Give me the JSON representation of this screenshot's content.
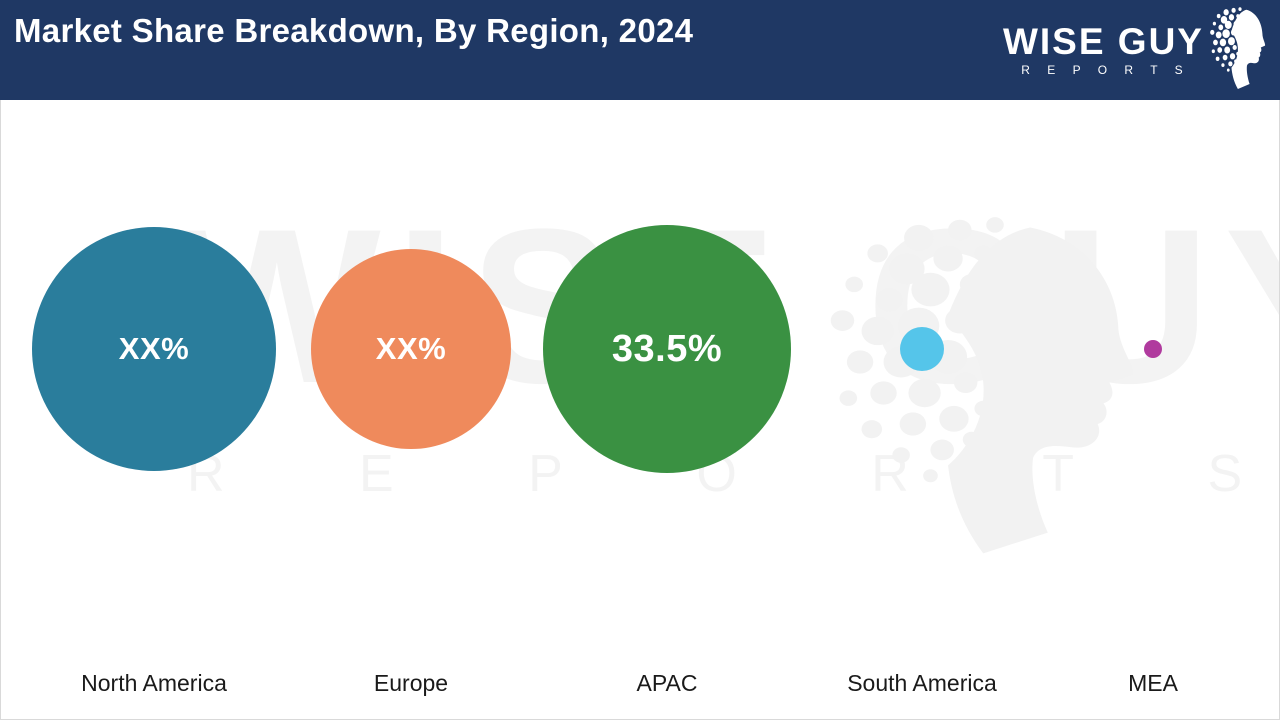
{
  "header": {
    "title": "Market Share Breakdown, By Region, 2024",
    "bg_color": "#1f3864",
    "logo": {
      "line1": "WISE GUY",
      "line2": "R E P O R T S"
    }
  },
  "watermark": {
    "line1": "WISE GUY",
    "line2": "R E P O R T S",
    "color": "#f2f2f2"
  },
  "chart_data": {
    "type": "bubble",
    "title": "Market Share Breakdown, By Region, 2024",
    "categories": [
      "North America",
      "Europe",
      "APAC",
      "South America",
      "MEA"
    ],
    "series": [
      {
        "name": "Market Share",
        "points": [
          {
            "category": "North America",
            "value_label": "XX%",
            "color": "#2a7d9c",
            "radius_px": 122
          },
          {
            "category": "Europe",
            "value_label": "XX%",
            "color": "#ef8a5c",
            "radius_px": 100
          },
          {
            "category": "APAC",
            "value_label": "33.5%",
            "color": "#3a9142",
            "radius_px": 124
          },
          {
            "category": "South America",
            "value_label": "",
            "color": "#55c5ea",
            "radius_px": 22
          },
          {
            "category": "MEA",
            "value_label": "",
            "color": "#b03a9e",
            "radius_px": 9
          }
        ]
      }
    ],
    "value_labels_shown": [
      "XX%",
      "XX%",
      "33.5%"
    ],
    "legend_position": "bottom",
    "grid": false
  }
}
